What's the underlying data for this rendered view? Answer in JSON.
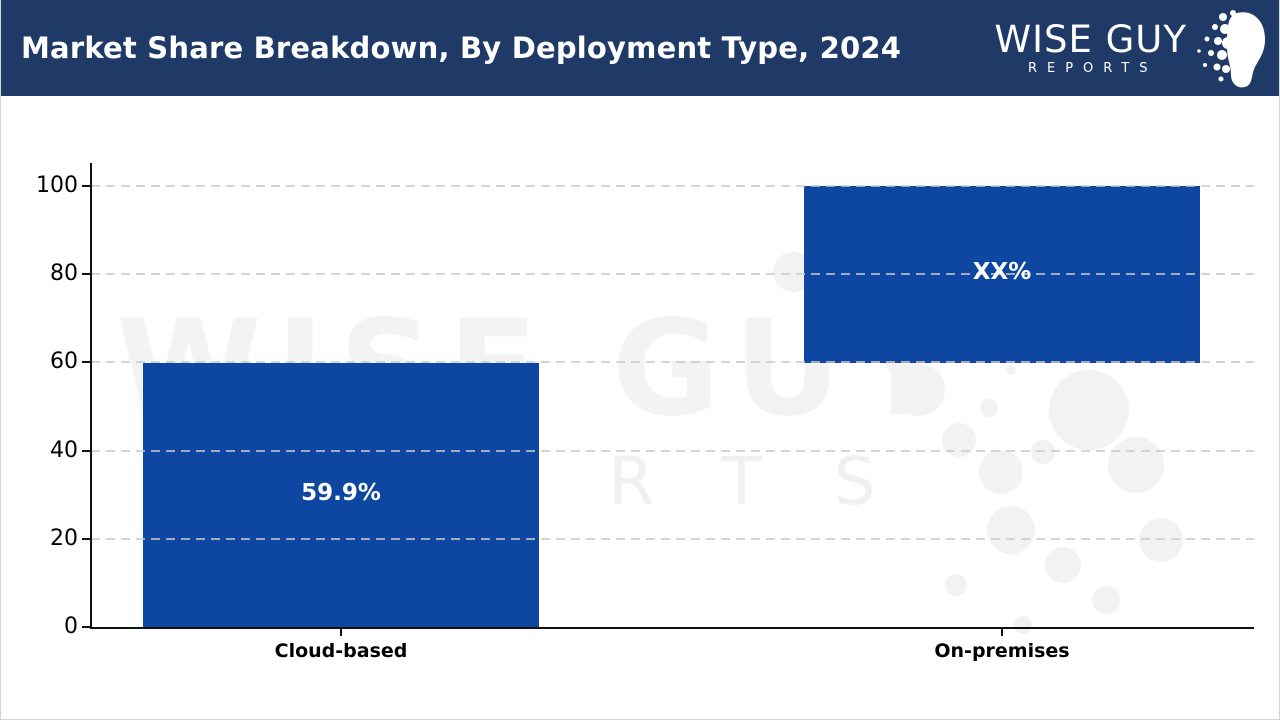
{
  "header": {
    "title": "Market Share Breakdown, By Deployment Type, 2024",
    "bg_color": "#1f3a67",
    "logo": {
      "line1": "WISE GUY",
      "line2": "REPORTS"
    }
  },
  "chart_data": {
    "type": "bar",
    "title": "Market Share Breakdown, By Deployment Type, 2024",
    "categories": [
      "Cloud-based",
      "On-premises"
    ],
    "bars": [
      {
        "category": "Cloud-based",
        "start": 0,
        "end": 59.9,
        "label": "59.9%"
      },
      {
        "category": "On-premises",
        "start": 59.9,
        "end": 100,
        "label": "XX%"
      }
    ],
    "values_note": "stacked breakdown: Cloud-based 59.9%, On-premises masked as XX% (40.1%)",
    "bar_color": "#0d47a1",
    "label_color": "#ffffff",
    "ylim": [
      0,
      100
    ],
    "yticks": [
      0,
      20,
      40,
      60,
      80,
      100
    ],
    "grid": "horizontal dashed, drawn over bars",
    "grid_color": "#c9c9c9",
    "watermark": {
      "line1": "WISE GUY",
      "line2": "REPORTS"
    }
  }
}
